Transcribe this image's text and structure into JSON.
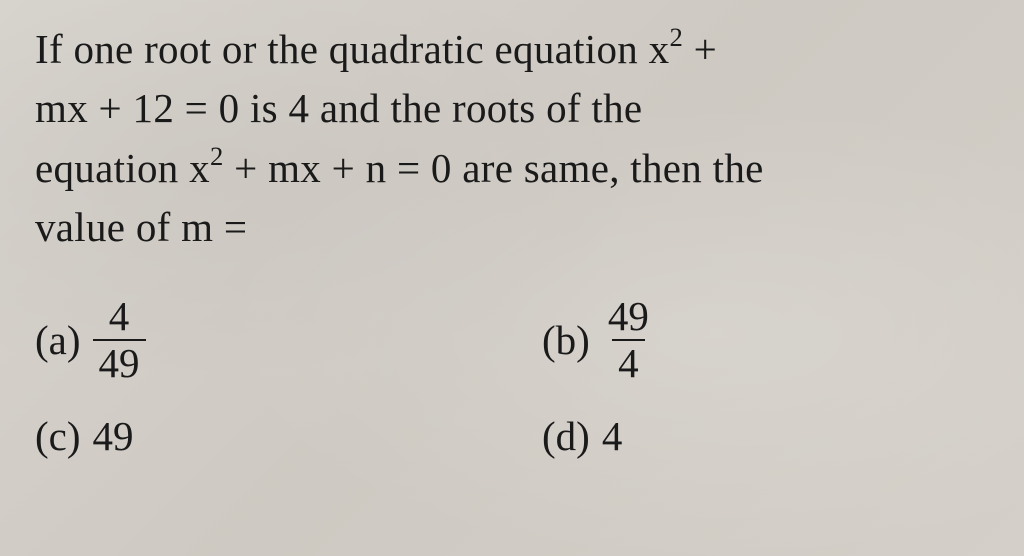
{
  "question": {
    "line1_part1": "If one root or the quadratic equation x",
    "line1_sup": "2",
    "line1_part2": " + ",
    "line2_part1": "mx + 12 = 0 is 4 and the roots of the ",
    "line3_part1": "equation x",
    "line3_sup": "2",
    "line3_part2": " + mx + n = 0 are same, then the ",
    "line4": "value of m ="
  },
  "options": {
    "a": {
      "label": "(a)",
      "numerator": "4",
      "denominator": "49"
    },
    "b": {
      "label": "(b)",
      "numerator": "49",
      "denominator": "4"
    },
    "c": {
      "label": "(c)",
      "value": "49"
    },
    "d": {
      "label": "(d)",
      "value": "4"
    }
  },
  "styling": {
    "font_family": "Times New Roman",
    "font_size_pt": 41,
    "text_color": "#1a1a1a",
    "background_color": "#d4cfc8",
    "line_height": 1.45
  }
}
